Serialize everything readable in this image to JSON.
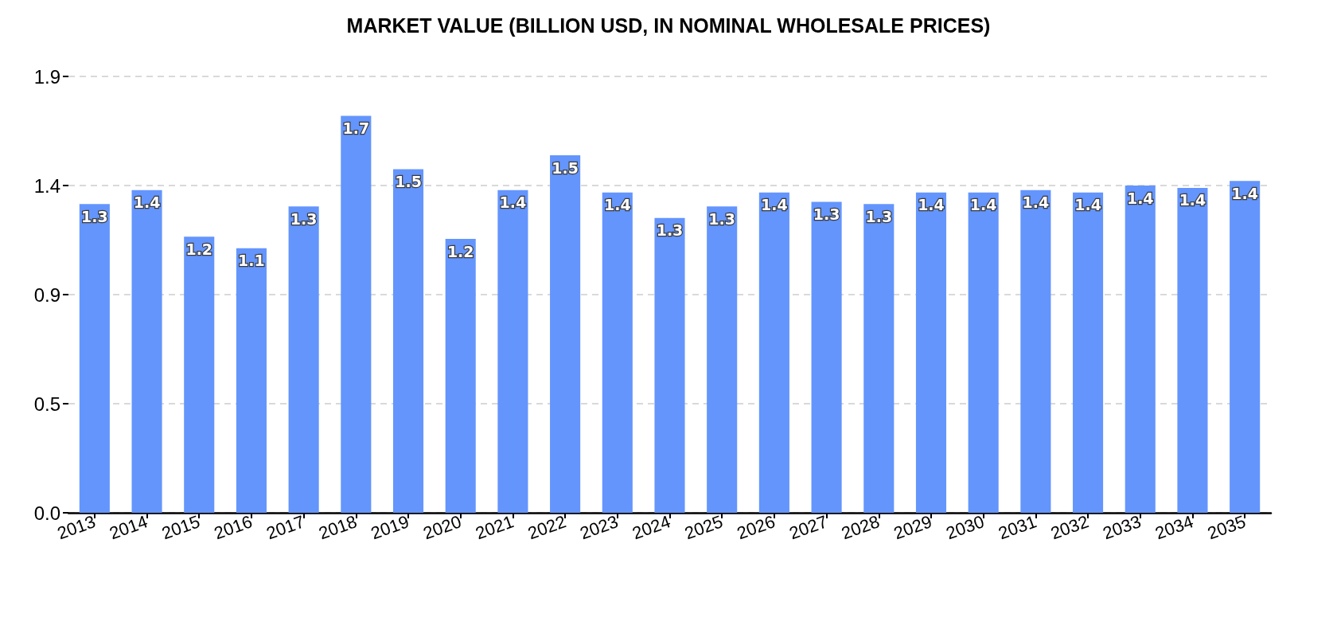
{
  "chart_data": {
    "type": "bar",
    "title": "MARKET VALUE (BILLION USD, IN NOMINAL WHOLESALE PRICES)",
    "categories": [
      "2013",
      "2014",
      "2015",
      "2016",
      "2017",
      "2018",
      "2019",
      "2020",
      "2021",
      "2022",
      "2023",
      "2024",
      "2025",
      "2026",
      "2027",
      "2028",
      "2029",
      "2030",
      "2031",
      "2032",
      "2033",
      "2034",
      "2035"
    ],
    "values": [
      1.33,
      1.39,
      1.19,
      1.14,
      1.32,
      1.71,
      1.48,
      1.18,
      1.39,
      1.54,
      1.38,
      1.27,
      1.32,
      1.38,
      1.34,
      1.33,
      1.38,
      1.38,
      1.39,
      1.38,
      1.41,
      1.4,
      1.43
    ],
    "value_labels": [
      "1.3",
      "1.4",
      "1.2",
      "1.1",
      "1.3",
      "1.7",
      "1.5",
      "1.2",
      "1.4",
      "1.5",
      "1.4",
      "1.3",
      "1.3",
      "1.4",
      "1.3",
      "1.3",
      "1.4",
      "1.4",
      "1.4",
      "1.4",
      "1.4",
      "1.4",
      "1.4"
    ],
    "color": "#6495fd",
    "ylim": [
      0,
      1.88
    ],
    "yticks": [
      {
        "value": 0,
        "label": "0.0"
      },
      {
        "value": 0.47,
        "label": "0.5"
      },
      {
        "value": 0.94,
        "label": "0.9"
      },
      {
        "value": 1.41,
        "label": "1.4"
      },
      {
        "value": 1.88,
        "label": "1.9"
      }
    ],
    "grid": "y"
  }
}
